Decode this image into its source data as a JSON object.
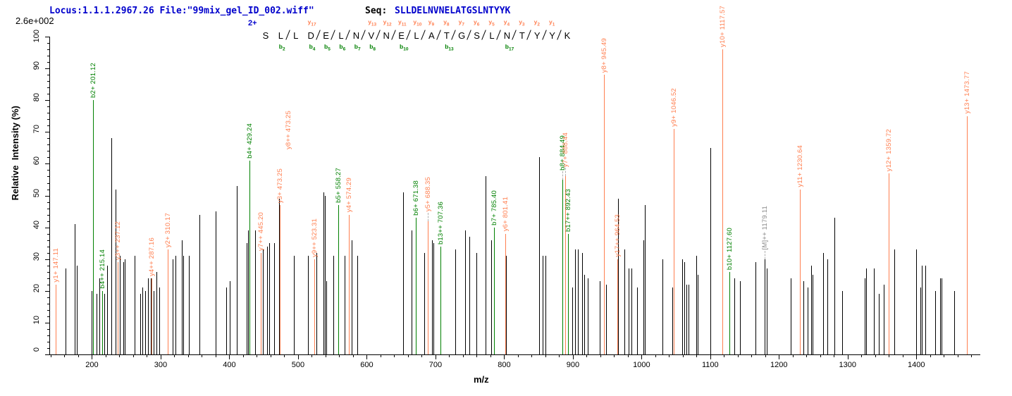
{
  "header": {
    "locus_file": "Locus:1.1.1.2967.26 File:\"99mix_gel_ID_002.wiff\"",
    "seq_label": "Seq:",
    "seq_value": "SLLDELNVNELATGSLNTYYK",
    "intensity_scale": "2.6e+002"
  },
  "colors": {
    "blue": "#0000cc",
    "orange": "#ff7f50",
    "green": "#008000",
    "gray": "#8a8a8a",
    "black": "#000000"
  },
  "chart_data": {
    "type": "bar",
    "subtype": "ms2-peptide-fragmentation-spectrum",
    "title": "",
    "xlabel": "m/z",
    "ylabel": "Relative  Intensity (%)",
    "xlim": [
      138,
      1492
    ],
    "ylim": [
      0,
      100
    ],
    "x_major_ticks": [
      200,
      300,
      400,
      500,
      600,
      700,
      800,
      900,
      1000,
      1100,
      1200,
      1300,
      1400
    ],
    "x_minor_tick_step": 20,
    "y_major_tick_step": 10,
    "y_minor_tick_step": 2,
    "grid": false,
    "precursor_charge": "2+",
    "sequence": "SLLDELNVNELATGSLNTYYK",
    "y_ion_ladder": [
      {
        "ion": "y17",
        "boundary": 4
      },
      {
        "ion": "y13",
        "boundary": 8
      },
      {
        "ion": "y12",
        "boundary": 9
      },
      {
        "ion": "y11",
        "boundary": 10
      },
      {
        "ion": "y10",
        "boundary": 11
      },
      {
        "ion": "y9",
        "boundary": 12
      },
      {
        "ion": "y8",
        "boundary": 13
      },
      {
        "ion": "y7",
        "boundary": 14
      },
      {
        "ion": "y6",
        "boundary": 15
      },
      {
        "ion": "y5",
        "boundary": 16
      },
      {
        "ion": "y4",
        "boundary": 17
      },
      {
        "ion": "y3",
        "boundary": 18
      },
      {
        "ion": "y2",
        "boundary": 19
      },
      {
        "ion": "y1",
        "boundary": 20
      }
    ],
    "b_ion_ladder": [
      {
        "ion": "b2",
        "boundary": 2
      },
      {
        "ion": "b4",
        "boundary": 4
      },
      {
        "ion": "b5",
        "boundary": 5
      },
      {
        "ion": "b6",
        "boundary": 6
      },
      {
        "ion": "b7",
        "boundary": 7
      },
      {
        "ion": "b8",
        "boundary": 8
      },
      {
        "ion": "b10",
        "boundary": 10
      },
      {
        "ion": "b13",
        "boundary": 13
      },
      {
        "ion": "b17",
        "boundary": 17
      }
    ],
    "labeled_peaks": [
      {
        "mz": 147.11,
        "pct": 22,
        "label": "y1+ 147.11",
        "color": "orange"
      },
      {
        "mz": 201.12,
        "pct": 80,
        "label": "b2+ 201.12",
        "color": "green"
      },
      {
        "mz": 215.14,
        "pct": 20,
        "label": "b4++ 215.14",
        "color": "green"
      },
      {
        "mz": 237.12,
        "pct": 29,
        "label": "y3++ 237.12",
        "color": "orange"
      },
      {
        "mz": 287.16,
        "pct": 24,
        "label": "y4++ 287.16",
        "color": "orange"
      },
      {
        "mz": 310.17,
        "pct": 33,
        "label": "y2+ 310.17",
        "color": "orange"
      },
      {
        "mz": 429.24,
        "pct": 61,
        "label": "b4+ 429.24",
        "color": "green"
      },
      {
        "mz": 445.2,
        "pct": 32,
        "label": "y7++ 445.20",
        "color": "orange"
      },
      {
        "mz": 473.25,
        "pct": 47,
        "label": "y3+ 473.25",
        "color": "orange",
        "label2": "y8++ 473.25"
      },
      {
        "mz": 523.31,
        "pct": 30,
        "label": "y9++ 523.31",
        "color": "orange"
      },
      {
        "mz": 558.27,
        "pct": 47,
        "label": "b5+ 558.27",
        "color": "green"
      },
      {
        "mz": 574.29,
        "pct": 44,
        "label": "y4+ 574.29",
        "color": "orange"
      },
      {
        "mz": 671.38,
        "pct": 43,
        "label": "b6+ 671.38",
        "color": "green"
      },
      {
        "mz": 688.35,
        "pct": 42,
        "label": "y5+ 688.35",
        "color": "orange",
        "leader": true
      },
      {
        "mz": 707.36,
        "pct": 34,
        "label": "b13++ 707.36",
        "color": "green"
      },
      {
        "mz": 785.4,
        "pct": 40,
        "label": "b7+ 785.40",
        "color": "green"
      },
      {
        "mz": 801.41,
        "pct": 38,
        "label": "y6+ 801.41",
        "color": "orange"
      },
      {
        "mz": 884.49,
        "pct": 55,
        "label": "b8+ 884.49",
        "color": "green",
        "leader": true
      },
      {
        "mz": 888.44,
        "pct": 56,
        "label": "y7+ 888.44",
        "color": "orange",
        "leader": true
      },
      {
        "mz": 892.43,
        "pct": 38,
        "label": "b17++ 892.43",
        "color": "green"
      },
      {
        "mz": 945.49,
        "pct": 88,
        "label": "y8+ 945.49",
        "color": "orange"
      },
      {
        "mz": 964.53,
        "pct": 30,
        "label": "y17++ 964.53",
        "color": "orange"
      },
      {
        "mz": 1046.52,
        "pct": 71,
        "label": "y9+ 1046.52",
        "color": "orange"
      },
      {
        "mz": 1117.57,
        "pct": 96,
        "label": "y10+ 1117.57",
        "color": "orange"
      },
      {
        "mz": 1127.6,
        "pct": 26,
        "label": "b10+ 1127.60",
        "color": "green"
      },
      {
        "mz": 1179.11,
        "pct": 30,
        "label": "[M]++ 1179.11",
        "color": "gray",
        "leader": true
      },
      {
        "mz": 1230.64,
        "pct": 52,
        "label": "y11+ 1230.64",
        "color": "orange"
      },
      {
        "mz": 1359.72,
        "pct": 57,
        "label": "y12+ 1359.72",
        "color": "orange"
      },
      {
        "mz": 1473.77,
        "pct": 75,
        "label": "y13+ 1473.77",
        "color": "orange"
      }
    ],
    "unlabeled_peaks": [
      [
        162,
        27
      ],
      [
        175,
        41
      ],
      [
        178,
        28
      ],
      [
        199,
        20
      ],
      [
        207,
        19
      ],
      [
        211,
        24
      ],
      [
        218,
        19
      ],
      [
        222,
        28
      ],
      [
        228,
        68
      ],
      [
        234,
        52
      ],
      [
        241,
        31
      ],
      [
        246,
        29
      ],
      [
        248,
        30
      ],
      [
        262,
        31
      ],
      [
        270,
        19
      ],
      [
        273,
        21
      ],
      [
        277,
        20
      ],
      [
        282,
        24
      ],
      [
        286,
        24
      ],
      [
        290,
        20
      ],
      [
        294,
        26
      ],
      [
        298,
        21
      ],
      [
        317,
        30
      ],
      [
        322,
        31
      ],
      [
        331,
        36
      ],
      [
        333,
        31
      ],
      [
        341,
        31
      ],
      [
        356,
        44
      ],
      [
        380,
        45
      ],
      [
        395,
        21
      ],
      [
        401,
        23
      ],
      [
        411,
        53
      ],
      [
        425,
        35
      ],
      [
        427,
        39
      ],
      [
        437,
        39
      ],
      [
        449,
        33
      ],
      [
        455,
        34
      ],
      [
        458,
        35
      ],
      [
        465,
        35
      ],
      [
        472,
        49
      ],
      [
        494,
        31
      ],
      [
        514,
        31
      ],
      [
        527,
        32
      ],
      [
        537,
        51
      ],
      [
        539,
        50
      ],
      [
        541,
        23
      ],
      [
        551,
        31
      ],
      [
        568,
        31
      ],
      [
        578,
        36
      ],
      [
        586,
        31
      ],
      [
        653,
        51
      ],
      [
        665,
        39
      ],
      [
        684,
        32
      ],
      [
        695,
        36
      ],
      [
        697,
        35
      ],
      [
        729,
        33
      ],
      [
        743,
        39
      ],
      [
        749,
        37
      ],
      [
        760,
        32
      ],
      [
        773,
        56
      ],
      [
        781,
        36
      ],
      [
        803,
        31
      ],
      [
        851,
        62
      ],
      [
        856,
        31
      ],
      [
        860,
        31
      ],
      [
        899,
        21
      ],
      [
        903,
        33
      ],
      [
        907,
        33
      ],
      [
        913,
        32
      ],
      [
        917,
        25
      ],
      [
        922,
        24
      ],
      [
        939,
        23
      ],
      [
        948,
        22
      ],
      [
        966,
        49
      ],
      [
        975,
        33
      ],
      [
        981,
        27
      ],
      [
        985,
        27
      ],
      [
        993,
        21
      ],
      [
        1003,
        36
      ],
      [
        1005,
        47
      ],
      [
        1030,
        30
      ],
      [
        1045,
        21
      ],
      [
        1059,
        30
      ],
      [
        1062,
        29
      ],
      [
        1065,
        22
      ],
      [
        1068,
        22
      ],
      [
        1080,
        31
      ],
      [
        1082,
        25
      ],
      [
        1100,
        65
      ],
      [
        1135,
        24
      ],
      [
        1143,
        23
      ],
      [
        1166,
        29
      ],
      [
        1182,
        27
      ],
      [
        1217,
        24
      ],
      [
        1236,
        23
      ],
      [
        1242,
        21
      ],
      [
        1247,
        28
      ],
      [
        1249,
        25
      ],
      [
        1264,
        32
      ],
      [
        1270,
        30
      ],
      [
        1281,
        43
      ],
      [
        1292,
        20
      ],
      [
        1325,
        24
      ],
      [
        1327,
        27
      ],
      [
        1338,
        27
      ],
      [
        1345,
        19
      ],
      [
        1352,
        22
      ],
      [
        1368,
        33
      ],
      [
        1400,
        33
      ],
      [
        1406,
        21
      ],
      [
        1408,
        28
      ],
      [
        1413,
        28
      ],
      [
        1427,
        20
      ],
      [
        1435,
        24
      ],
      [
        1437,
        24
      ],
      [
        1455,
        20
      ]
    ]
  }
}
